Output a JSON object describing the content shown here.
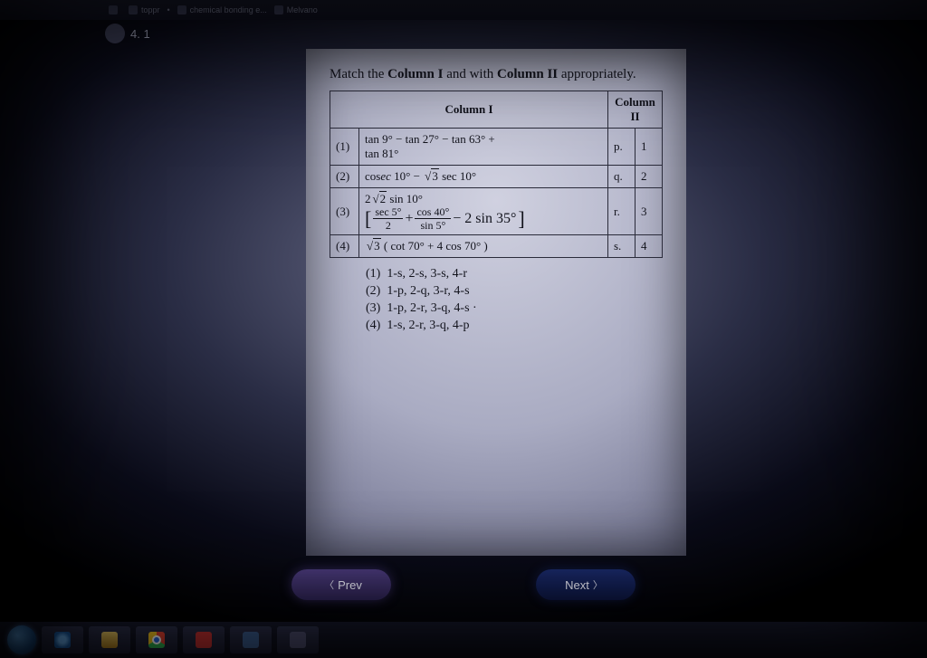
{
  "tabstrip": {
    "items": [
      {
        "icon": "tab-icon",
        "label": ""
      },
      {
        "icon": "tab-icon",
        "label": "toppr"
      },
      {
        "icon": "tab-icon",
        "label": "chemical bonding e..."
      },
      {
        "icon": "tab-icon",
        "label": "Melvano"
      }
    ]
  },
  "question_number": "4. 1",
  "sheet": {
    "prompt_pre": "Match the ",
    "prompt_col1": "Column I",
    "prompt_mid": " and with ",
    "prompt_col2": "Column II",
    "prompt_post": " appropriately.",
    "headers": {
      "col1": "Column I",
      "col2": "Column II"
    },
    "rows": [
      {
        "idx": "(1)",
        "expr_key": "r1",
        "key": "p.",
        "val": "1"
      },
      {
        "idx": "(2)",
        "expr_key": "r2",
        "key": "q.",
        "val": "2"
      },
      {
        "idx": "(3)",
        "expr_key": "r3",
        "key": "r.",
        "val": "3"
      },
      {
        "idx": "(4)",
        "expr_key": "r4",
        "key": "s.",
        "val": "4"
      }
    ],
    "expr": {
      "r1_a": "tan 9° − tan 27° − tan 63° +",
      "r1_b": "tan 81°",
      "r2": "cosec 10° − √3 sec 10°",
      "r3_top": "2√2 sin 10°",
      "r3_f1n": "sec 5°",
      "r3_f1d": "2",
      "r3_plus": "+",
      "r3_f2n": "cos 40°",
      "r3_f2d": "sin 5°",
      "r3_tail": "− 2 sin 35°",
      "r4_a": "√3",
      "r4_b": "( cot 70° + 4 cos 70° )"
    },
    "options": [
      {
        "n": "(1)",
        "t": "1-s, 2-s, 3-s, 4-r"
      },
      {
        "n": "(2)",
        "t": "1-p, 2-q, 3-r, 4-s"
      },
      {
        "n": "(3)",
        "t": "1-p, 2-r, 3-q, 4-s"
      },
      {
        "n": "(4)",
        "t": "1-s, 2-r, 3-q, 4-p"
      }
    ]
  },
  "nav": {
    "prev": "Prev",
    "next": "Next"
  },
  "colors": {
    "prev_bg": "#3a2d66",
    "next_bg": "#12205a"
  }
}
